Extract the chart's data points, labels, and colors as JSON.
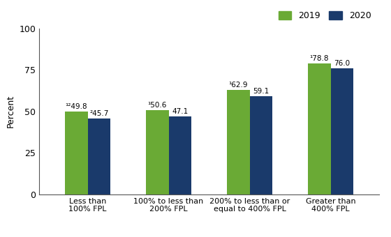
{
  "categories": [
    "Less than\n100% FPL",
    "100% to less than\n200% FPL",
    "200% to less than or\nequal to 400% FPL",
    "Greater than\n400% FPL"
  ],
  "values_2019": [
    49.8,
    50.6,
    62.9,
    78.8
  ],
  "values_2020": [
    45.7,
    47.1,
    59.1,
    76.0
  ],
  "labels_2019": [
    "¹²49.8",
    "¹50.6",
    "¹62.9",
    "¹78.8"
  ],
  "labels_2020": [
    "²45.7",
    "47.1",
    "59.1",
    "76.0"
  ],
  "color_2019": "#6aaa35",
  "color_2020": "#1a3a6b",
  "ylabel": "Percent",
  "ylim": [
    0,
    100
  ],
  "yticks": [
    0,
    25,
    50,
    75,
    100
  ],
  "legend_2019": "2019",
  "legend_2020": "2020",
  "bar_width": 0.28,
  "label_fontsize": 7.5
}
